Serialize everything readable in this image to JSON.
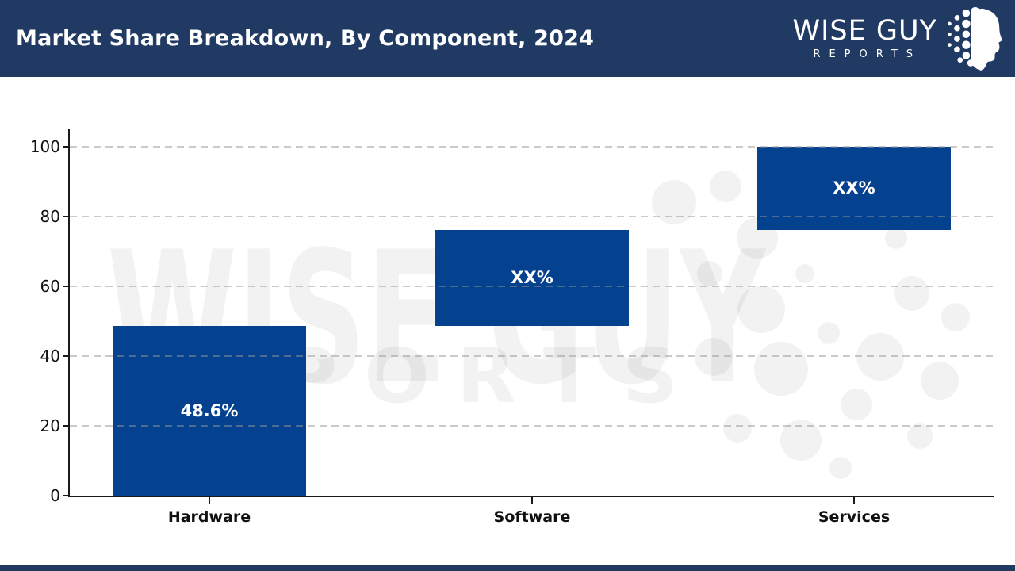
{
  "header": {
    "background": "#213A63",
    "title": "Market Share Breakdown, By Component, 2024",
    "logo": {
      "brand": "WISE GUY",
      "sub": "REPORTS"
    }
  },
  "footer": {
    "background": "#213A63"
  },
  "chart_data": {
    "type": "bar",
    "variant": "waterfall",
    "title": "Market Share Breakdown, By Component, 2024",
    "categories": [
      "Hardware",
      "Software",
      "Services"
    ],
    "segments": [
      {
        "category": "Hardware",
        "start": 0,
        "end": 48.6,
        "label": "48.6%"
      },
      {
        "category": "Software",
        "start": 48.6,
        "end": 76.3,
        "label": "XX%"
      },
      {
        "category": "Services",
        "start": 76.3,
        "end": 100,
        "label": "XX%"
      }
    ],
    "xlabel": "",
    "ylabel": "",
    "yticks": [
      0,
      20,
      40,
      60,
      80,
      100
    ],
    "ylim": [
      0,
      105
    ],
    "grid": "horizontal-dashed",
    "legend": "none",
    "bar_color": "#04418F",
    "bar_label_color": "#FFFFFF",
    "axis_color": "#1A1A1A",
    "grid_color": "#C8C8C8",
    "watermark": {
      "line1": "WISE GUY",
      "line2": "R E P O R T S"
    }
  }
}
